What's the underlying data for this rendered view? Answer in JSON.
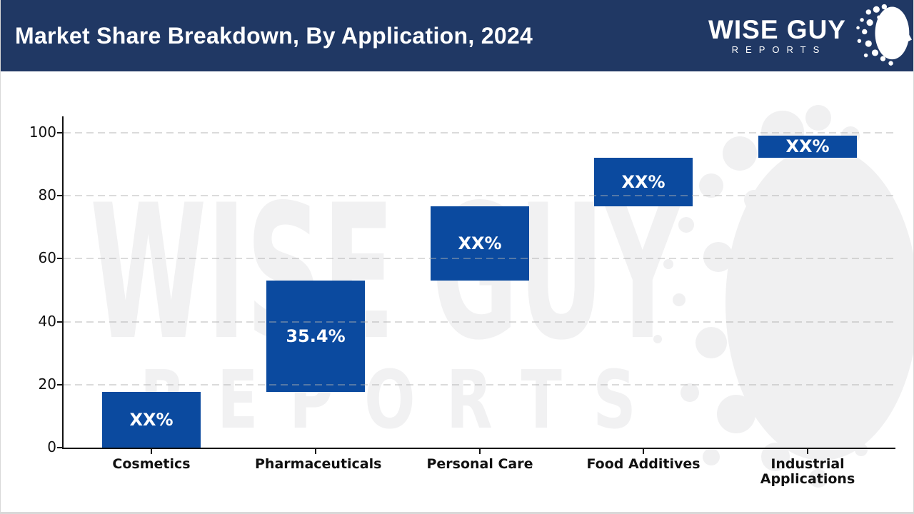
{
  "header": {
    "title": "Market Share Breakdown, By Application, 2024",
    "logo": {
      "line1": "WISE GUY",
      "line2": "REPORTS"
    }
  },
  "watermark": {
    "line1": "WISE GUY",
    "line2": "REPORTS"
  },
  "colors": {
    "header_bg": "#203864",
    "bar": "#0b4a9f",
    "grid": "rgba(175,175,175,0.45)",
    "axis": "#111111",
    "bar_label_text": "#ffffff",
    "page_border": "#d9d9d9",
    "watermark": "#f1f1f2"
  },
  "chart_data": {
    "type": "bar",
    "subtype": "floating-waterfall",
    "title": "Market Share Breakdown, By Application, 2024",
    "categories": [
      "Cosmetics",
      "Pharmaceuticals",
      "Personal Care",
      "Food Additives",
      "Industrial Applications"
    ],
    "bars": [
      {
        "category": "Cosmetics",
        "start": 0,
        "end": 17.7,
        "value_label": "XX%"
      },
      {
        "category": "Pharmaceuticals",
        "start": 17.7,
        "end": 53.1,
        "value": 35.4,
        "value_label": "35.4%"
      },
      {
        "category": "Personal Care",
        "start": 53.1,
        "end": 76.6,
        "value_label": "XX%"
      },
      {
        "category": "Food Additives",
        "start": 76.6,
        "end": 92.1,
        "value_label": "XX%"
      },
      {
        "category": "Industrial Applications",
        "start": 92.1,
        "end": 99.2,
        "value_label": "XX%"
      }
    ],
    "ylim": [
      0,
      100
    ],
    "yticks": [
      0,
      20,
      40,
      60,
      80,
      100
    ],
    "xlabel": "",
    "ylabel": "",
    "grid": "horizontal-dashed-over-bars",
    "legend": "none"
  }
}
